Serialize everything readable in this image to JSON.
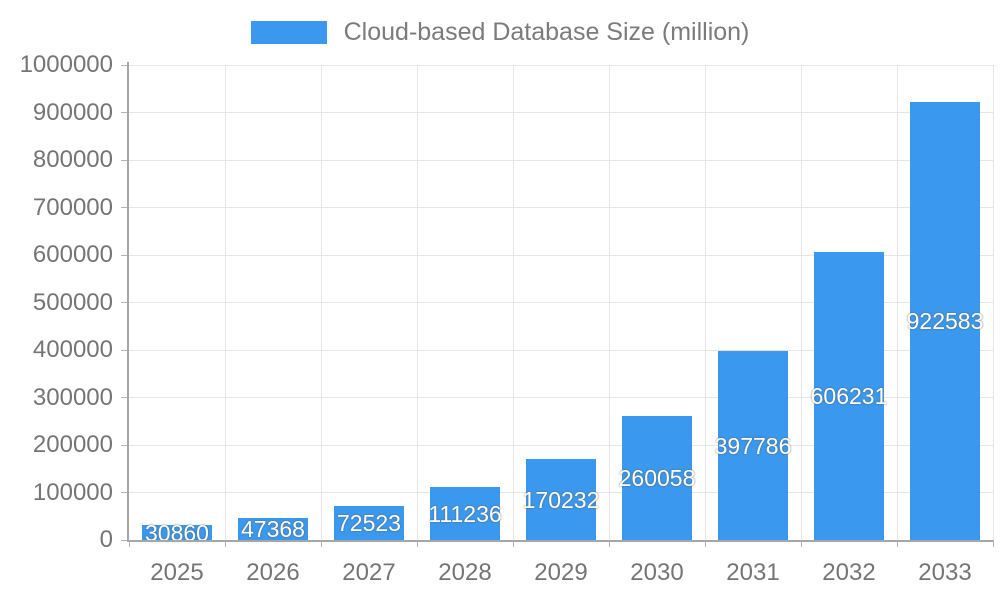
{
  "legend": {
    "label": "Cloud-based Database Size (million)"
  },
  "chart_data": {
    "type": "bar",
    "title": "Cloud-based Database Size (million)",
    "series_name": "Cloud-based Database Size (million)",
    "categories": [
      "2025",
      "2026",
      "2027",
      "2028",
      "2029",
      "2030",
      "2031",
      "2032",
      "2033"
    ],
    "values": [
      30860,
      47368,
      72523,
      111236,
      170232,
      260058,
      397786,
      606231,
      922583
    ],
    "bar_labels": [
      30860,
      47368,
      72523,
      111236,
      170232,
      260058,
      397786,
      606231,
      922583
    ],
    "xlabel": "",
    "ylabel": "",
    "ylim": [
      0,
      1000000
    ],
    "ytick_step": 100000,
    "yticks": [
      0,
      100000,
      200000,
      300000,
      400000,
      500000,
      600000,
      700000,
      800000,
      900000,
      1000000
    ],
    "grid": true,
    "legend_position": "top"
  },
  "colors": {
    "bar": "#3A99EE",
    "grid": "#e6e6e6",
    "axis": "#a6a6a6",
    "tick": "#b3b3b3",
    "text": "#757575",
    "title": "#7b7b7b",
    "bar_label": "#ffffff"
  }
}
